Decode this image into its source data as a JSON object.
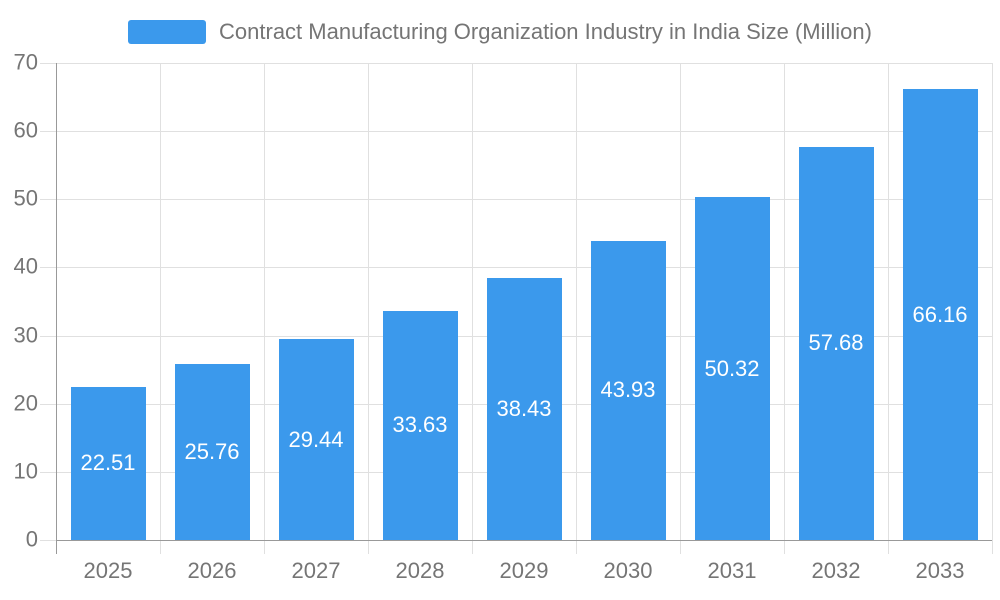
{
  "chart_data": {
    "type": "bar",
    "title": "Contract Manufacturing Organization Industry in India Size (Million)",
    "categories": [
      "2025",
      "2026",
      "2027",
      "2028",
      "2029",
      "2030",
      "2031",
      "2032",
      "2033"
    ],
    "values": [
      22.51,
      25.76,
      29.44,
      33.63,
      38.43,
      43.93,
      50.32,
      57.68,
      66.16
    ],
    "value_labels": [
      "22.51",
      "25.76",
      "29.44",
      "33.63",
      "38.43",
      "43.93",
      "50.32",
      "57.68",
      "66.16"
    ],
    "xlabel": "",
    "ylabel": "",
    "ylim": [
      0,
      70
    ],
    "yticks": [
      0,
      10,
      20,
      30,
      40,
      50,
      60,
      70
    ],
    "grid": true,
    "legend_position": "top",
    "colors": {
      "bar": "#3b99ec",
      "value_label": "#ffffff",
      "axis_text": "#757575",
      "grid": "#e0e0e0",
      "axis_line": "#999999",
      "background": "#ffffff"
    }
  }
}
